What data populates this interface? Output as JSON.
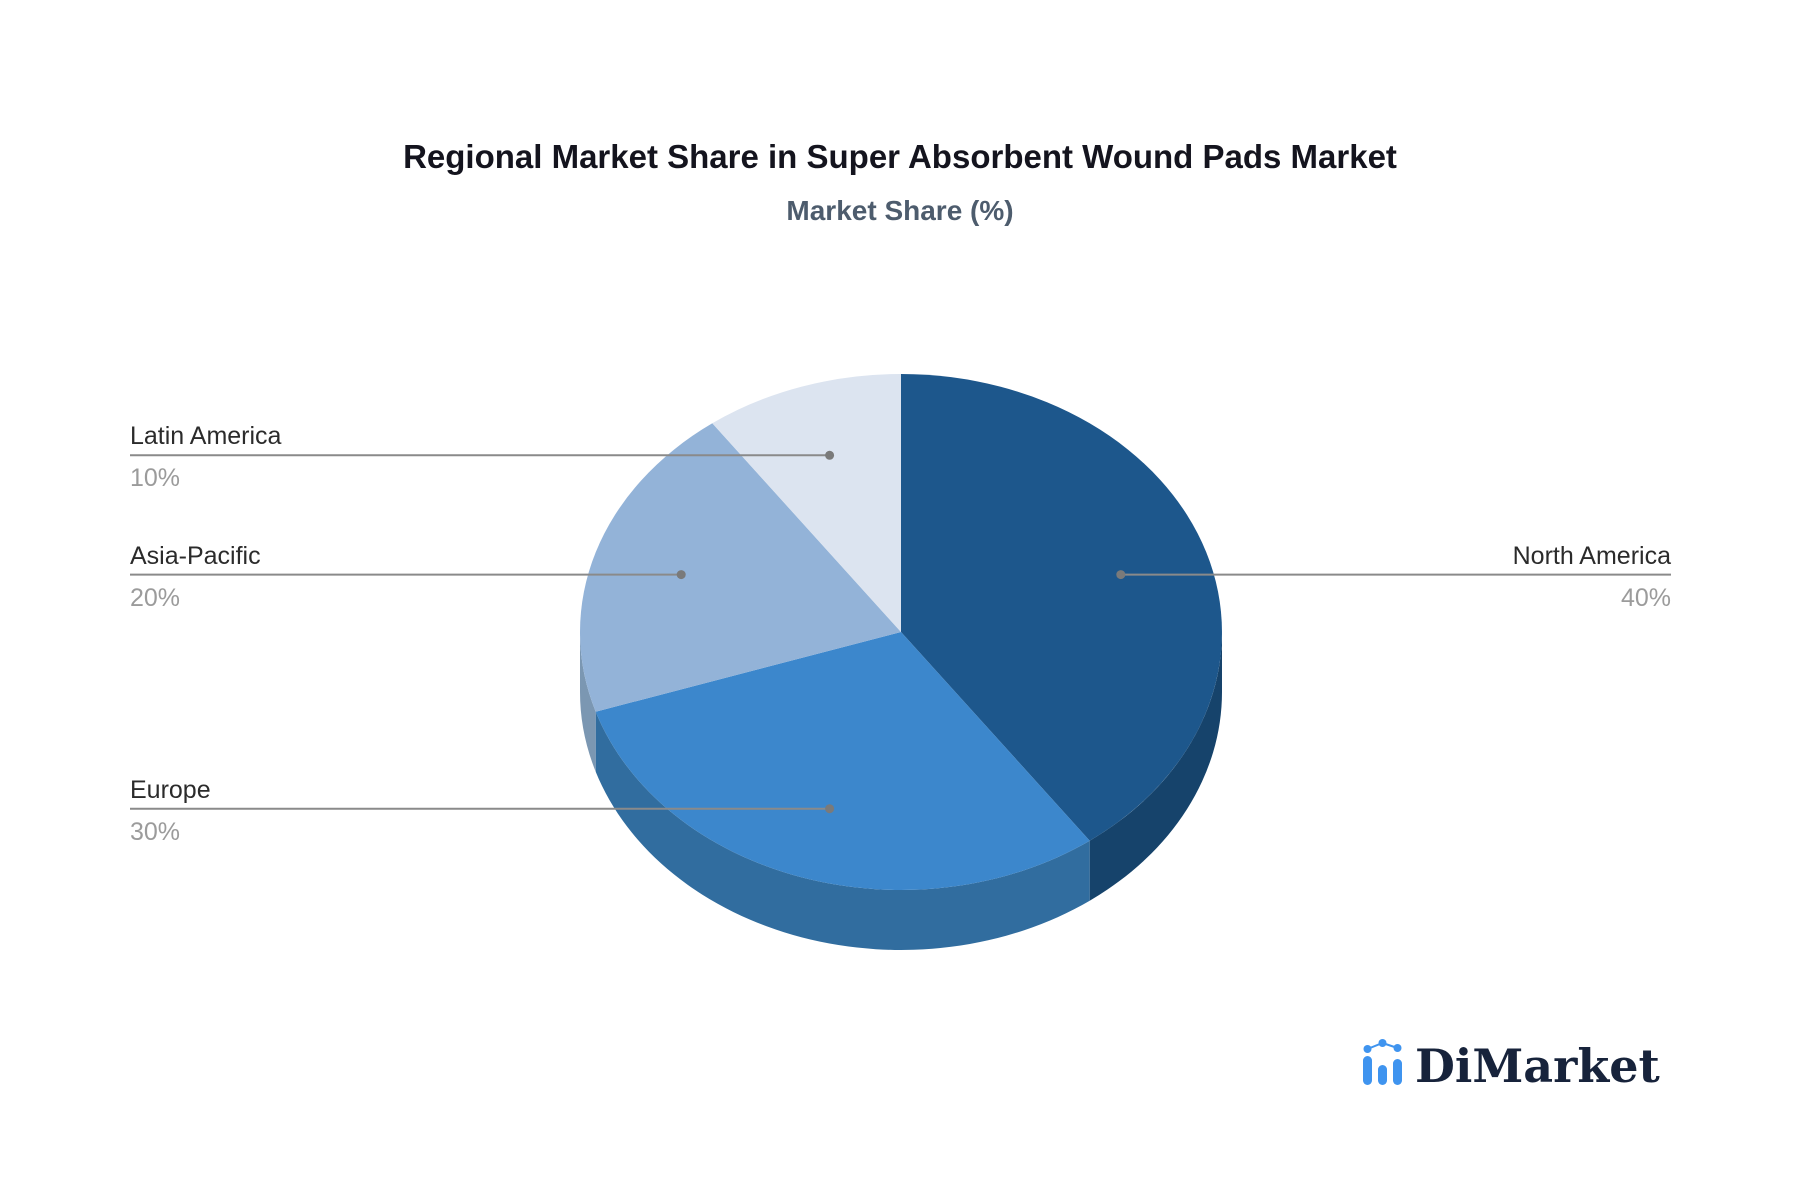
{
  "page": {
    "background": "#ffffff"
  },
  "header": {
    "title": "Regional Market Share in Super Absorbent Wound Pads Market",
    "subtitle": "Market Share (%)"
  },
  "chart_data": {
    "type": "pie",
    "effect": "3d",
    "title": "Regional Market Share in Super Absorbent Wound Pads Market",
    "subtitle": "Market Share (%)",
    "unit": "%",
    "start_angle_deg": 0,
    "direction": "clockwise",
    "categories": [
      "North America",
      "Europe",
      "Asia-Pacific",
      "Latin America"
    ],
    "values": [
      40,
      30,
      20,
      10
    ],
    "percent_labels": [
      "40%",
      "30%",
      "20%",
      "10%"
    ],
    "label_sides": [
      "right",
      "left",
      "left",
      "left"
    ],
    "colors": [
      "#1d578c",
      "#3c87cc",
      "#93b3d8",
      "#dce4f0"
    ],
    "side_colors": [
      "#16436b",
      "#316d9f",
      "#7b97b2",
      "#c9d2e2"
    ],
    "leader_line_color": "#8a8a8a",
    "leader_dot_color": "#7a7a7a",
    "label_text_color": "#2b2b2b",
    "percent_text_color": "#9b9b9b",
    "legend_position": "none",
    "grid": "off"
  },
  "branding": {
    "name": "DiMarket",
    "icon": "bar-line-chart-logo-icon",
    "icon_color": "#3f94ef",
    "text_color": "#17233b"
  }
}
